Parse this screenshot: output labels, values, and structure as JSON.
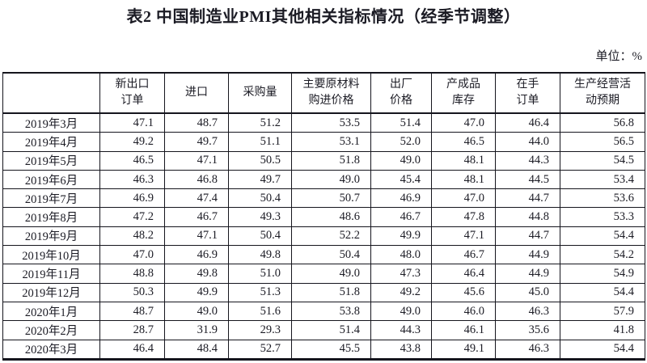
{
  "page": {
    "title": "表2 中国制造业PMI其他相关指标情况（经季节调整）",
    "unit_label": "单位：%"
  },
  "table": {
    "columns": [
      "",
      "新出口\n订单",
      "进口",
      "采购量",
      "主要原材料\n购进价格",
      "出厂\n价格",
      "产成品\n库存",
      "在手\n订单",
      "生产经营活\n动预期"
    ],
    "rows": [
      {
        "label": "2019年3月",
        "values": [
          "47.1",
          "48.7",
          "51.2",
          "53.5",
          "51.4",
          "47.0",
          "46.4",
          "56.8"
        ]
      },
      {
        "label": "2019年4月",
        "values": [
          "49.2",
          "49.7",
          "51.1",
          "53.1",
          "52.0",
          "46.5",
          "44.0",
          "56.5"
        ]
      },
      {
        "label": "2019年5月",
        "values": [
          "46.5",
          "47.1",
          "50.5",
          "51.8",
          "49.0",
          "48.1",
          "44.3",
          "54.5"
        ]
      },
      {
        "label": "2019年6月",
        "values": [
          "46.3",
          "46.8",
          "49.7",
          "49.0",
          "45.4",
          "48.1",
          "44.5",
          "53.4"
        ]
      },
      {
        "label": "2019年7月",
        "values": [
          "46.9",
          "47.4",
          "50.4",
          "50.7",
          "46.9",
          "47.0",
          "44.7",
          "53.6"
        ]
      },
      {
        "label": "2019年8月",
        "values": [
          "47.2",
          "46.7",
          "49.3",
          "48.6",
          "46.7",
          "47.8",
          "44.8",
          "53.3"
        ]
      },
      {
        "label": "2019年9月",
        "values": [
          "48.2",
          "47.1",
          "50.4",
          "52.2",
          "49.9",
          "47.1",
          "44.7",
          "54.4"
        ]
      },
      {
        "label": "2019年10月",
        "values": [
          "47.0",
          "46.9",
          "49.8",
          "50.4",
          "48.0",
          "46.7",
          "44.9",
          "54.2"
        ]
      },
      {
        "label": "2019年11月",
        "values": [
          "48.8",
          "49.8",
          "51.0",
          "49.0",
          "47.3",
          "46.4",
          "44.9",
          "54.9"
        ]
      },
      {
        "label": "2019年12月",
        "values": [
          "50.3",
          "49.9",
          "51.3",
          "51.8",
          "49.2",
          "45.6",
          "45.0",
          "54.4"
        ]
      },
      {
        "label": "2020年1月",
        "values": [
          "48.7",
          "49.0",
          "51.6",
          "53.8",
          "49.0",
          "46.0",
          "46.3",
          "57.9"
        ]
      },
      {
        "label": "2020年2月",
        "values": [
          "28.7",
          "31.9",
          "29.3",
          "51.4",
          "44.3",
          "46.1",
          "35.6",
          "41.8"
        ]
      },
      {
        "label": "2020年3月",
        "values": [
          "46.4",
          "48.4",
          "52.7",
          "45.5",
          "43.8",
          "49.1",
          "46.3",
          "54.4"
        ]
      }
    ]
  }
}
